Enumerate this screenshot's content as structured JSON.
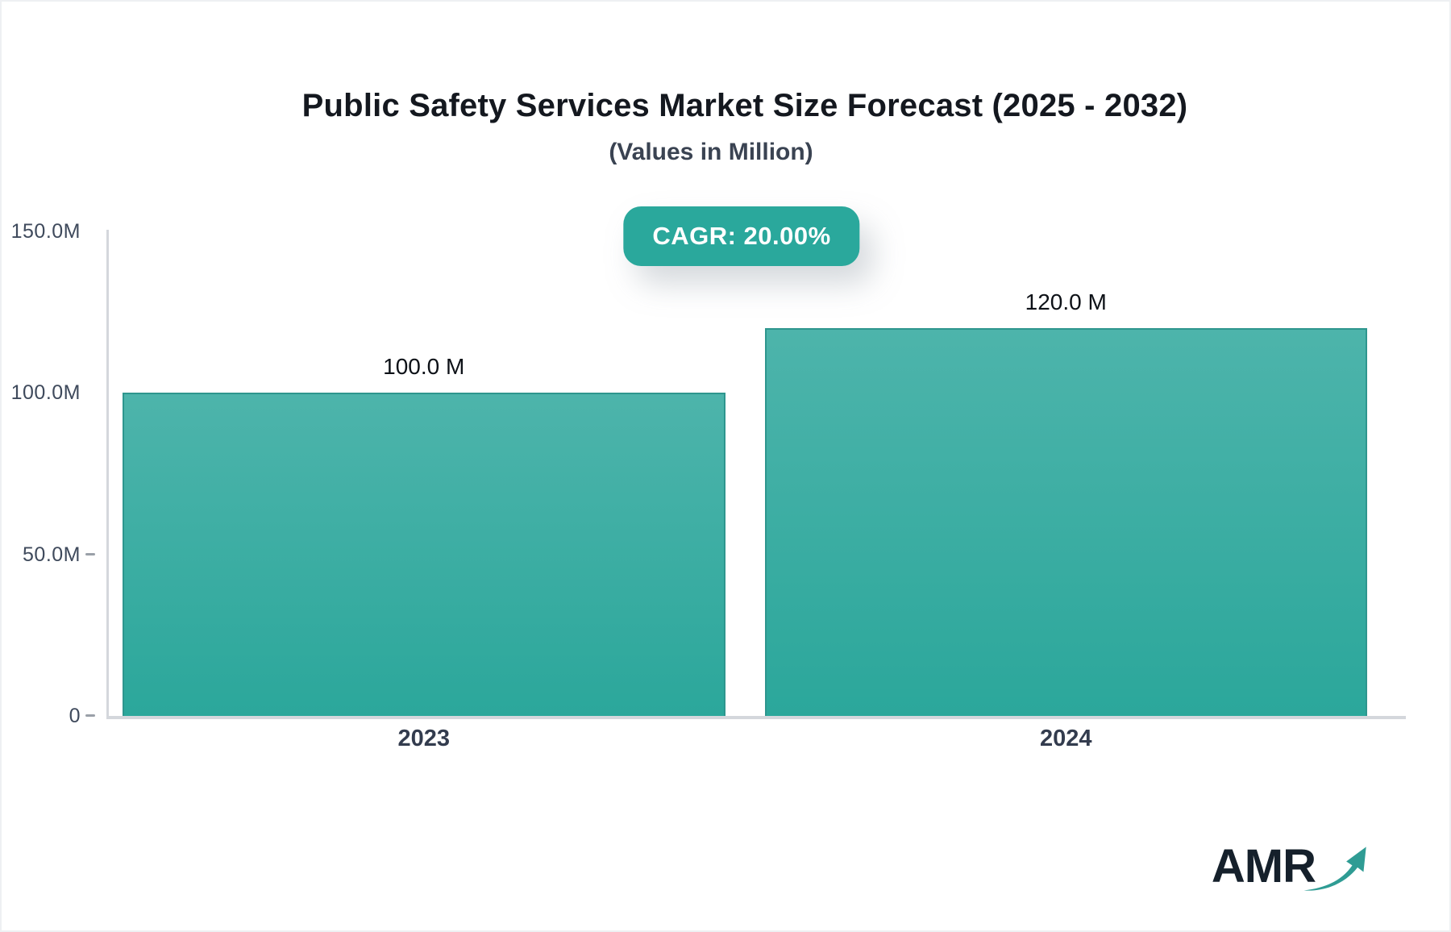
{
  "frame": {
    "background": "#ffffff",
    "border_color": "#eef0f3"
  },
  "header": {
    "title": "Public Safety Services Market Size Forecast (2025 - 2032)",
    "subtitle": "(Values in Million)"
  },
  "badge": {
    "label": "CAGR: 20.00%",
    "background": "#2aa89c",
    "text_color": "#ffffff"
  },
  "chart_data": {
    "type": "bar",
    "title": "Public Safety Services Market Size Forecast (2025 - 2032)",
    "subtitle": "(Values in Million)",
    "categories": [
      "2023",
      "2024"
    ],
    "values": [
      100.0,
      120.0
    ],
    "bar_labels": [
      "100.0 M",
      "120.0 M"
    ],
    "unit": "Million",
    "xlabel": "",
    "ylabel": "",
    "ylim": [
      0,
      150
    ],
    "yticks": [
      {
        "label": "150.0M",
        "value": 150,
        "tick": false
      },
      {
        "label": "100.0M",
        "value": 100,
        "tick": false
      },
      {
        "label": "50.0M",
        "value": 50,
        "tick": true
      },
      {
        "label": "0",
        "value": 0,
        "tick": true
      }
    ],
    "grid": false,
    "legend": false,
    "colors": {
      "bar_gradient_top": "#4db4ab",
      "bar_gradient_bottom": "#2ba79b",
      "bar_border": "#2e968e",
      "axis_line": "#d4d7dc",
      "tick_dash": "#9aa0a8",
      "y_label": "#3f4a5c",
      "x_label": "#333c4e",
      "value_label": "#0d1117"
    }
  },
  "logo": {
    "text": "AMR",
    "text_color": "#15202b",
    "arrow_color": "#2f9c94"
  }
}
